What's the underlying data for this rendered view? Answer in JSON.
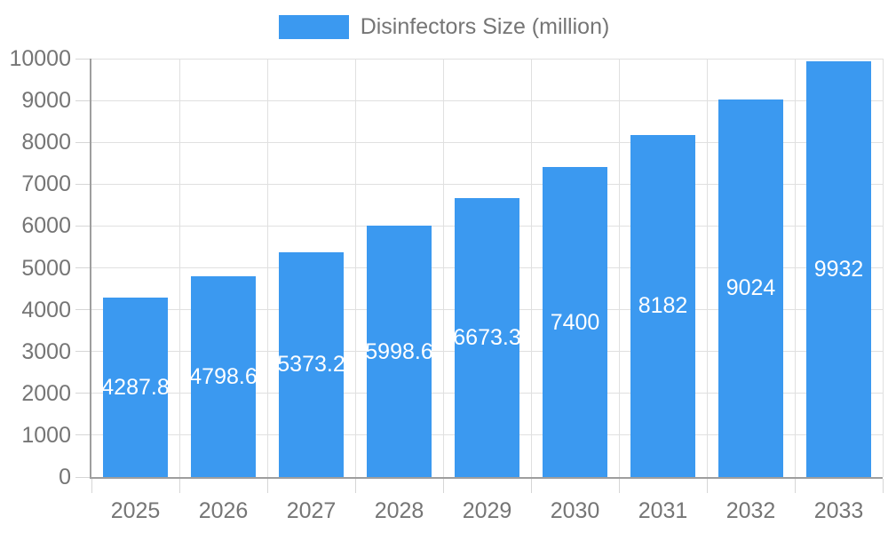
{
  "legend": {
    "label": "Disinfectors Size (million)",
    "swatch_color": "#3B99F0"
  },
  "chart_data": {
    "type": "bar",
    "title": "",
    "xlabel": "",
    "ylabel": "",
    "categories": [
      "2025",
      "2026",
      "2027",
      "2028",
      "2029",
      "2030",
      "2031",
      "2032",
      "2033"
    ],
    "values": [
      4287.8,
      4798.6,
      5373.2,
      5998.6,
      6673.3,
      7400,
      8182,
      9024,
      9932
    ],
    "data_labels": [
      "4287.8",
      "4798.6",
      "5373.2",
      "5998.6",
      "6673.3",
      "7400",
      "8182",
      "9024",
      "9932"
    ],
    "legend_entries": [
      "Disinfectors Size (million)"
    ],
    "legend_position": "top",
    "ylim": [
      0,
      10000
    ],
    "ytick_step": 1000,
    "ytick_labels": [
      "0",
      "1000",
      "2000",
      "3000",
      "4000",
      "5000",
      "6000",
      "7000",
      "8000",
      "9000",
      "10000"
    ],
    "grid": true,
    "bar_color": "#3B99F0",
    "data_label_color": "#FFFFFF",
    "axis_text_color": "#757575",
    "grid_color": "#E0E0E0",
    "axis_line_color": "#9E9E9E"
  }
}
